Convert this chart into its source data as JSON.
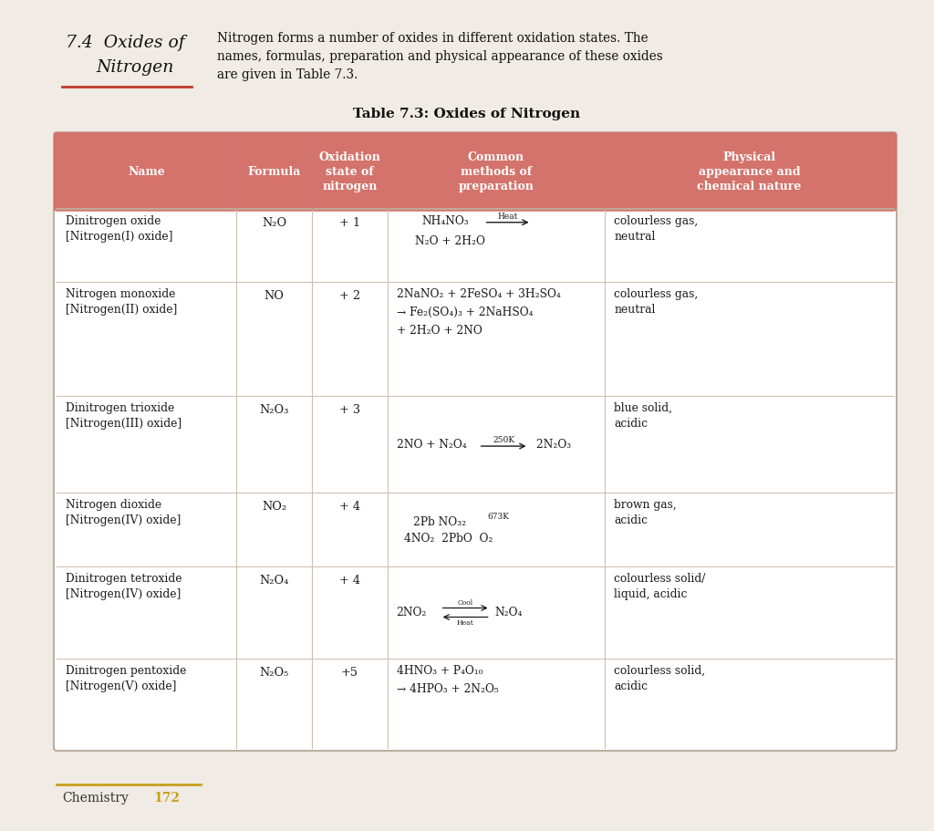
{
  "page_bg": "#f0ebe4",
  "header_bg": "#d4736b",
  "header_text_color": "#ffffff",
  "row_bg": "#ffffff",
  "table_border_color": "#c8b4a8",
  "headers": [
    "Name",
    "Formula",
    "Oxidation\nstate of\nnitrogen",
    "Common\nmethods of\npreparation",
    "Physical\nappearance and\nchemical nature"
  ],
  "rows": [
    {
      "name": "Dinitrogen oxide\n[Nitrogen(I) oxide]",
      "formula": "N₂O",
      "oxidation": "+ 1",
      "physical": "colourless gas,\nneutral"
    },
    {
      "name": "Nitrogen monoxide\n[Nitrogen(II) oxide]",
      "formula": "NO",
      "oxidation": "+ 2",
      "physical": "colourless gas,\nneutral"
    },
    {
      "name": "Dinitrogen trioxide\n[Nitrogen(III) oxide]",
      "formula": "N₂O₃",
      "oxidation": "+ 3",
      "physical": "blue solid,\nacidic"
    },
    {
      "name": "Nitrogen dioxide\n[Nitrogen(IV) oxide]",
      "formula": "NO₂",
      "oxidation": "+ 4",
      "physical": "brown gas,\nacidic"
    },
    {
      "name": "Dinitrogen tetroxide\n[Nitrogen(IV) oxide]",
      "formula": "N₂O₄",
      "oxidation": "+ 4",
      "physical": "colourless solid/\nliquid, acidic"
    },
    {
      "name": "Dinitrogen pentoxide\n[Nitrogen(V) oxide]",
      "formula": "N₂O₅",
      "oxidation": "+5",
      "physical": "colourless solid,\nacidic"
    }
  ],
  "footer_text": "Chemistry",
  "footer_number": "172",
  "intro_text_line1": "Nitrogen forms a number of oxides in different oxidation states. The",
  "intro_text_line2": "names, formulas, preparation and physical appearance of these oxides",
  "intro_text_line3": "are given in Table 7.3.",
  "table_title": "Table 7.3: Oxides of Nitrogen"
}
